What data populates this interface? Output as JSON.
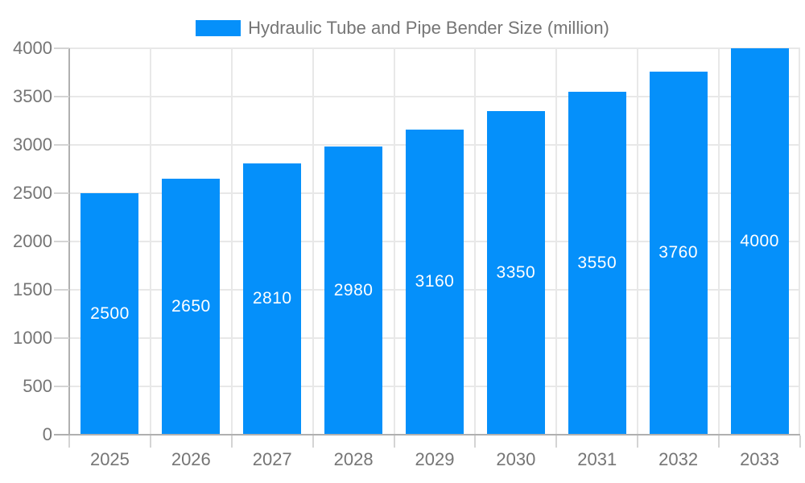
{
  "chart_data": {
    "type": "bar",
    "title": "Hydraulic Tube and Pipe Bender Size (million)",
    "categories": [
      "2025",
      "2026",
      "2027",
      "2028",
      "2029",
      "2030",
      "2031",
      "2032",
      "2033"
    ],
    "values": [
      2500,
      2650,
      2810,
      2980,
      3160,
      3350,
      3550,
      3760,
      4000
    ],
    "bar_labels": [
      "2500",
      "2650",
      "2810",
      "2980",
      "3160",
      "3350",
      "3550",
      "3760",
      "4000"
    ],
    "yticks": [
      "0",
      "500",
      "1000",
      "1500",
      "2000",
      "2500",
      "3000",
      "3500",
      "4000"
    ],
    "ylim": [
      0,
      4000
    ],
    "ytick_step": 500,
    "xlabel": "",
    "ylabel": "",
    "grid": true,
    "legend_position": "top"
  },
  "colors": {
    "bar": "#0590fa",
    "grid": "#e8e8e8",
    "axis": "#b0b0b0",
    "tick": "#d4d4d4",
    "text": "#757575",
    "bar_label": "#ffffff",
    "background": "#ffffff"
  }
}
